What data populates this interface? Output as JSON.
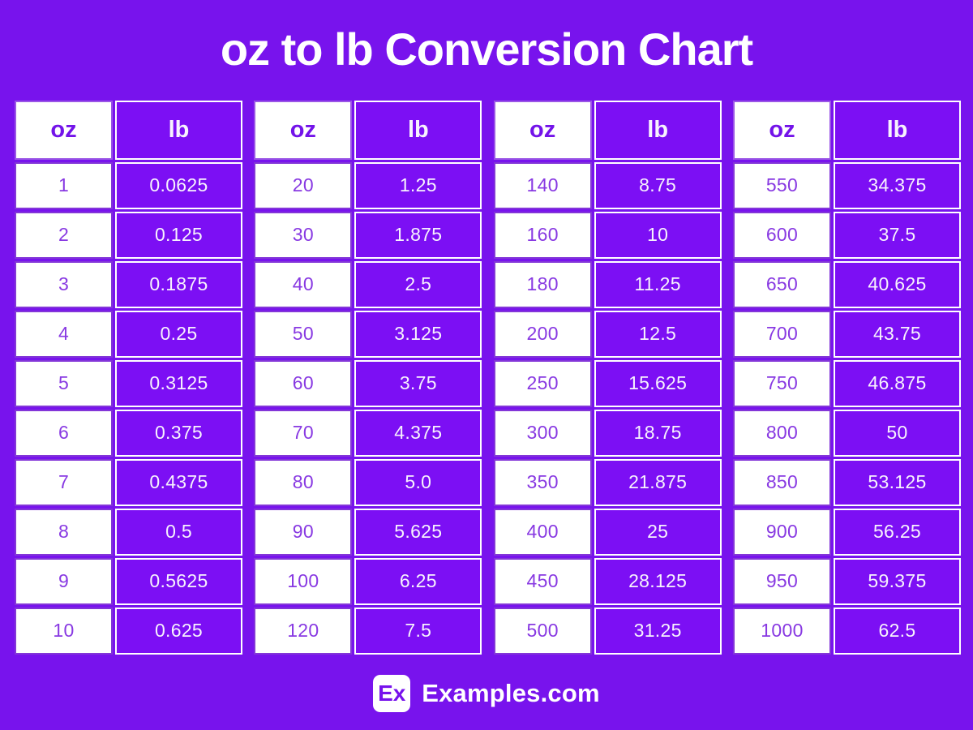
{
  "title": "oz to lb Conversion Chart",
  "footer": {
    "logo_text": "Ex",
    "site_name": "Examples.com"
  },
  "colors": {
    "background": "#7813ED",
    "cell_purple": "#7C0FF4",
    "oz_number_purple": "#8839E2",
    "oz_header_purple": "#7313E9",
    "text_white": "#FFFFFF"
  },
  "tables": [
    {
      "oz_label": "oz",
      "lb_label": "lb",
      "rows": [
        {
          "oz": "1",
          "lb": "0.0625"
        },
        {
          "oz": "2",
          "lb": "0.125"
        },
        {
          "oz": "3",
          "lb": "0.1875"
        },
        {
          "oz": "4",
          "lb": "0.25"
        },
        {
          "oz": "5",
          "lb": "0.3125"
        },
        {
          "oz": "6",
          "lb": "0.375"
        },
        {
          "oz": "7",
          "lb": "0.4375"
        },
        {
          "oz": "8",
          "lb": "0.5"
        },
        {
          "oz": "9",
          "lb": "0.5625"
        },
        {
          "oz": "10",
          "lb": "0.625"
        }
      ]
    },
    {
      "oz_label": "oz",
      "lb_label": "lb",
      "rows": [
        {
          "oz": "20",
          "lb": "1.25"
        },
        {
          "oz": "30",
          "lb": "1.875"
        },
        {
          "oz": "40",
          "lb": "2.5"
        },
        {
          "oz": "50",
          "lb": "3.125"
        },
        {
          "oz": "60",
          "lb": "3.75"
        },
        {
          "oz": "70",
          "lb": "4.375"
        },
        {
          "oz": "80",
          "lb": "5.0"
        },
        {
          "oz": "90",
          "lb": "5.625"
        },
        {
          "oz": "100",
          "lb": "6.25"
        },
        {
          "oz": "120",
          "lb": "7.5"
        }
      ]
    },
    {
      "oz_label": "oz",
      "lb_label": "lb",
      "rows": [
        {
          "oz": "140",
          "lb": "8.75"
        },
        {
          "oz": "160",
          "lb": "10"
        },
        {
          "oz": "180",
          "lb": "11.25"
        },
        {
          "oz": "200",
          "lb": "12.5"
        },
        {
          "oz": "250",
          "lb": "15.625"
        },
        {
          "oz": "300",
          "lb": "18.75"
        },
        {
          "oz": "350",
          "lb": "21.875"
        },
        {
          "oz": "400",
          "lb": "25"
        },
        {
          "oz": "450",
          "lb": "28.125"
        },
        {
          "oz": "500",
          "lb": "31.25"
        }
      ]
    },
    {
      "oz_label": "oz",
      "lb_label": "lb",
      "rows": [
        {
          "oz": "550",
          "lb": "34.375"
        },
        {
          "oz": "600",
          "lb": "37.5"
        },
        {
          "oz": "650",
          "lb": "40.625"
        },
        {
          "oz": "700",
          "lb": "43.75"
        },
        {
          "oz": "750",
          "lb": "46.875"
        },
        {
          "oz": "800",
          "lb": "50"
        },
        {
          "oz": "850",
          "lb": "53.125"
        },
        {
          "oz": "900",
          "lb": "56.25"
        },
        {
          "oz": "950",
          "lb": "59.375"
        },
        {
          "oz": "1000",
          "lb": "62.5"
        }
      ]
    }
  ],
  "chart_data": {
    "type": "table",
    "title": "oz to lb Conversion Chart",
    "columns": [
      "oz",
      "lb"
    ],
    "tables": [
      {
        "oz": [
          1,
          2,
          3,
          4,
          5,
          6,
          7,
          8,
          9,
          10
        ],
        "lb": [
          0.0625,
          0.125,
          0.1875,
          0.25,
          0.3125,
          0.375,
          0.4375,
          0.5,
          0.5625,
          0.625
        ]
      },
      {
        "oz": [
          20,
          30,
          40,
          50,
          60,
          70,
          80,
          90,
          100,
          120
        ],
        "lb": [
          1.25,
          1.875,
          2.5,
          3.125,
          3.75,
          4.375,
          5.0,
          5.625,
          6.25,
          7.5
        ]
      },
      {
        "oz": [
          140,
          160,
          180,
          200,
          250,
          300,
          350,
          400,
          450,
          500
        ],
        "lb": [
          8.75,
          10,
          11.25,
          12.5,
          15.625,
          18.75,
          21.875,
          25,
          28.125,
          31.25
        ]
      },
      {
        "oz": [
          550,
          600,
          650,
          700,
          750,
          800,
          850,
          900,
          950,
          1000
        ],
        "lb": [
          34.375,
          37.5,
          40.625,
          43.75,
          46.875,
          50,
          53.125,
          56.25,
          59.375,
          62.5
        ]
      }
    ]
  }
}
